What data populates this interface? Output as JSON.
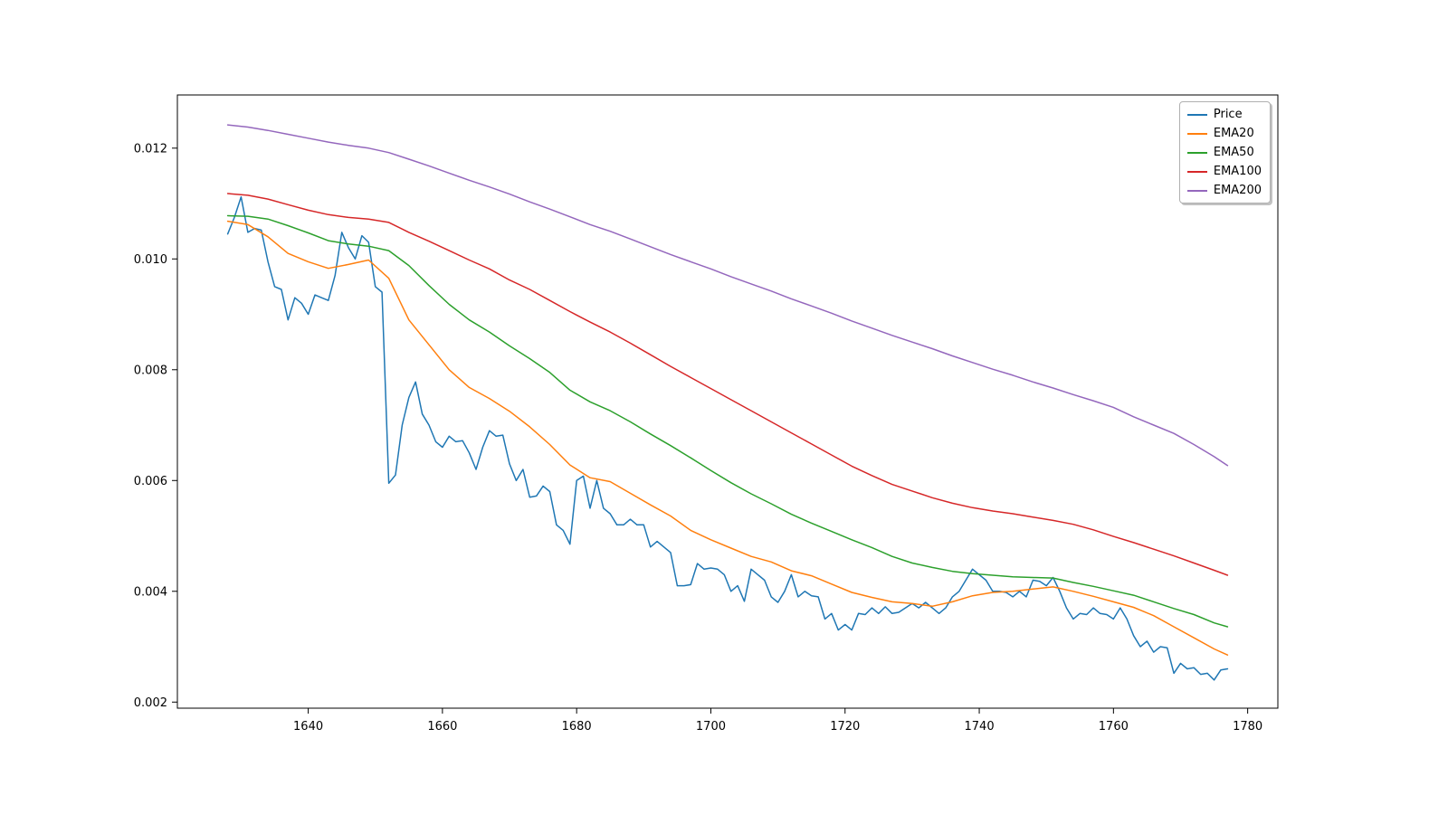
{
  "figure": {
    "background": "#ffffff",
    "axes_edge_color": "#000000"
  },
  "legend": {
    "entries": [
      "Price",
      "EMA20",
      "EMA50",
      "EMA100",
      "EMA200"
    ]
  },
  "chart_data": {
    "type": "line",
    "title": "",
    "xlabel": "",
    "ylabel": "",
    "grid": false,
    "legend_position": "upper right",
    "xlim": [
      1620.5,
      1784.5
    ],
    "ylim": [
      0.00189,
      0.01296
    ],
    "xticks": [
      1640,
      1660,
      1680,
      1700,
      1720,
      1740,
      1760,
      1780
    ],
    "xtick_labels": [
      "1640",
      "1660",
      "1680",
      "1700",
      "1720",
      "1740",
      "1760",
      "1780"
    ],
    "yticks": [
      0.002,
      0.004,
      0.006,
      0.008,
      0.01,
      0.012
    ],
    "ytick_labels": [
      "0.002",
      "0.004",
      "0.006",
      "0.008",
      "0.010",
      "0.012"
    ],
    "series": [
      {
        "name": "Price",
        "color": "#1f77b4",
        "x_start": 1628,
        "x_step": 1,
        "y": [
          0.01045,
          0.01075,
          0.01112,
          0.01048,
          0.01055,
          0.01052,
          0.00995,
          0.0095,
          0.00945,
          0.0089,
          0.0093,
          0.0092,
          0.009,
          0.00935,
          0.0093,
          0.00925,
          0.0097,
          0.01048,
          0.0102,
          0.01,
          0.01042,
          0.0103,
          0.0095,
          0.0094,
          0.00595,
          0.0061,
          0.007,
          0.0075,
          0.00778,
          0.0072,
          0.007,
          0.0067,
          0.0066,
          0.0068,
          0.0067,
          0.00672,
          0.0065,
          0.0062,
          0.0066,
          0.0069,
          0.0068,
          0.00682,
          0.0063,
          0.006,
          0.0062,
          0.0057,
          0.00572,
          0.0059,
          0.0058,
          0.0052,
          0.0051,
          0.00485,
          0.006,
          0.00608,
          0.0055,
          0.006,
          0.0055,
          0.0054,
          0.0052,
          0.0052,
          0.0053,
          0.0052,
          0.0052,
          0.0048,
          0.0049,
          0.0048,
          0.0047,
          0.0041,
          0.0041,
          0.00412,
          0.0045,
          0.0044,
          0.00442,
          0.0044,
          0.0043,
          0.004,
          0.0041,
          0.00382,
          0.0044,
          0.0043,
          0.0042,
          0.0039,
          0.0038,
          0.004,
          0.0043,
          0.0039,
          0.004,
          0.00392,
          0.0039,
          0.0035,
          0.0036,
          0.0033,
          0.0034,
          0.0033,
          0.0036,
          0.00358,
          0.0037,
          0.0036,
          0.00372,
          0.0036,
          0.00362,
          0.0037,
          0.00378,
          0.0037,
          0.0038,
          0.0037,
          0.0036,
          0.0037,
          0.0039,
          0.004,
          0.0042,
          0.0044,
          0.0043,
          0.0042,
          0.004,
          0.004,
          0.00398,
          0.0039,
          0.004,
          0.0039,
          0.0042,
          0.00418,
          0.0041,
          0.00425,
          0.004,
          0.0037,
          0.0035,
          0.0036,
          0.00358,
          0.0037,
          0.0036,
          0.00358,
          0.0035,
          0.0037,
          0.0035,
          0.0032,
          0.003,
          0.0031,
          0.0029,
          0.003,
          0.00298,
          0.00252,
          0.0027,
          0.0026,
          0.00262,
          0.0025,
          0.00252,
          0.0024,
          0.00258,
          0.0026
        ]
      },
      {
        "name": "EMA20",
        "color": "#ff7f0e",
        "x": [
          1628,
          1631,
          1634,
          1637,
          1640,
          1643,
          1646,
          1649,
          1652,
          1655,
          1658,
          1661,
          1664,
          1667,
          1670,
          1673,
          1676,
          1679,
          1682,
          1685,
          1688,
          1691,
          1694,
          1697,
          1700,
          1703,
          1706,
          1709,
          1712,
          1715,
          1718,
          1721,
          1724,
          1727,
          1730,
          1733,
          1736,
          1739,
          1742,
          1745,
          1748,
          1751,
          1754,
          1757,
          1760,
          1763,
          1766,
          1769,
          1772,
          1775,
          1777
        ],
        "y": [
          0.01068,
          0.01062,
          0.0104,
          0.0101,
          0.00995,
          0.00983,
          0.0099,
          0.00998,
          0.00965,
          0.0089,
          0.00845,
          0.008,
          0.00768,
          0.00748,
          0.00725,
          0.00697,
          0.00665,
          0.00628,
          0.00605,
          0.00598,
          0.00577,
          0.00556,
          0.00536,
          0.0051,
          0.00493,
          0.00478,
          0.00463,
          0.00453,
          0.00437,
          0.00428,
          0.00413,
          0.00398,
          0.00389,
          0.00381,
          0.00378,
          0.00373,
          0.00381,
          0.00392,
          0.00398,
          0.004,
          0.00404,
          0.00408,
          0.004,
          0.00391,
          0.00381,
          0.00371,
          0.00356,
          0.00336,
          0.00316,
          0.00296,
          0.00285
        ]
      },
      {
        "name": "EMA50",
        "color": "#2ca02c",
        "x": [
          1628,
          1631,
          1634,
          1637,
          1640,
          1643,
          1646,
          1649,
          1652,
          1655,
          1658,
          1661,
          1664,
          1667,
          1670,
          1673,
          1676,
          1679,
          1682,
          1685,
          1688,
          1691,
          1694,
          1697,
          1700,
          1703,
          1706,
          1709,
          1712,
          1715,
          1718,
          1721,
          1724,
          1727,
          1730,
          1733,
          1736,
          1739,
          1742,
          1745,
          1748,
          1751,
          1754,
          1757,
          1760,
          1763,
          1766,
          1769,
          1772,
          1775,
          1777
        ],
        "y": [
          0.01078,
          0.01077,
          0.01072,
          0.0106,
          0.01047,
          0.01033,
          0.01027,
          0.01023,
          0.01015,
          0.00988,
          0.00952,
          0.00918,
          0.0089,
          0.00868,
          0.00843,
          0.0082,
          0.00795,
          0.00763,
          0.00742,
          0.00726,
          0.00706,
          0.00684,
          0.00663,
          0.00641,
          0.00618,
          0.00596,
          0.00576,
          0.00558,
          0.00539,
          0.00523,
          0.00508,
          0.00493,
          0.00479,
          0.00463,
          0.00451,
          0.00443,
          0.00436,
          0.00432,
          0.00429,
          0.00426,
          0.00425,
          0.00424,
          0.00416,
          0.00409,
          0.00401,
          0.00393,
          0.00381,
          0.00369,
          0.00358,
          0.00343,
          0.00336
        ]
      },
      {
        "name": "EMA100",
        "color": "#d62728",
        "x": [
          1628,
          1631,
          1634,
          1637,
          1640,
          1643,
          1646,
          1649,
          1652,
          1655,
          1658,
          1661,
          1664,
          1667,
          1670,
          1673,
          1676,
          1679,
          1682,
          1685,
          1688,
          1691,
          1694,
          1697,
          1700,
          1703,
          1706,
          1709,
          1712,
          1715,
          1718,
          1721,
          1724,
          1727,
          1730,
          1733,
          1736,
          1739,
          1742,
          1745,
          1748,
          1751,
          1754,
          1757,
          1760,
          1763,
          1766,
          1769,
          1772,
          1775,
          1777
        ],
        "y": [
          0.01118,
          0.01115,
          0.01108,
          0.01098,
          0.01088,
          0.0108,
          0.01075,
          0.01072,
          0.01066,
          0.01048,
          0.01032,
          0.01015,
          0.00998,
          0.00982,
          0.00962,
          0.00945,
          0.00925,
          0.00905,
          0.00886,
          0.00868,
          0.00848,
          0.00827,
          0.00806,
          0.00786,
          0.00766,
          0.00746,
          0.00726,
          0.00706,
          0.00686,
          0.00666,
          0.00646,
          0.00626,
          0.00609,
          0.00593,
          0.00581,
          0.00569,
          0.00559,
          0.00551,
          0.00545,
          0.0054,
          0.00534,
          0.00528,
          0.00521,
          0.00511,
          0.00499,
          0.00488,
          0.00476,
          0.00464,
          0.00451,
          0.00438,
          0.00429
        ]
      },
      {
        "name": "EMA200",
        "color": "#9467bd",
        "x": [
          1628,
          1631,
          1634,
          1637,
          1640,
          1643,
          1646,
          1649,
          1652,
          1655,
          1658,
          1661,
          1664,
          1667,
          1670,
          1673,
          1676,
          1679,
          1682,
          1685,
          1688,
          1691,
          1694,
          1697,
          1700,
          1703,
          1706,
          1709,
          1712,
          1715,
          1718,
          1721,
          1724,
          1727,
          1730,
          1733,
          1736,
          1739,
          1742,
          1745,
          1748,
          1751,
          1754,
          1757,
          1760,
          1763,
          1766,
          1769,
          1772,
          1775,
          1777
        ],
        "y": [
          0.01242,
          0.01238,
          0.01232,
          0.01225,
          0.01218,
          0.01211,
          0.01205,
          0.012,
          0.01192,
          0.0118,
          0.01168,
          0.01155,
          0.01142,
          0.0113,
          0.01117,
          0.01103,
          0.0109,
          0.01076,
          0.01062,
          0.0105,
          0.01036,
          0.01022,
          0.01008,
          0.00995,
          0.00982,
          0.00968,
          0.00955,
          0.00942,
          0.00928,
          0.00915,
          0.00902,
          0.00888,
          0.00875,
          0.00862,
          0.0085,
          0.00838,
          0.00825,
          0.00813,
          0.00801,
          0.0079,
          0.00778,
          0.00767,
          0.00755,
          0.00744,
          0.00732,
          0.00715,
          0.007,
          0.00685,
          0.00665,
          0.00643,
          0.00627
        ]
      }
    ]
  }
}
